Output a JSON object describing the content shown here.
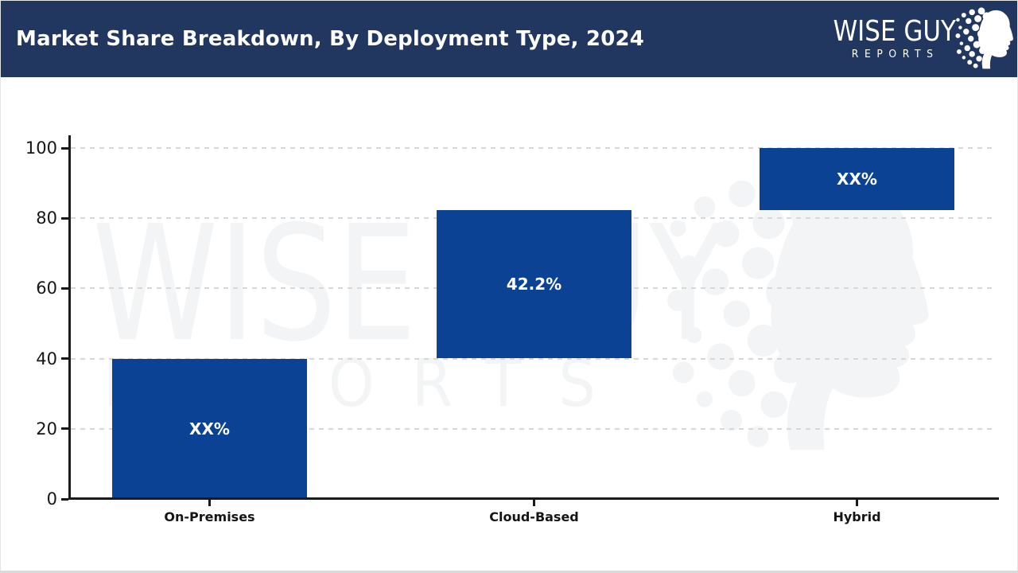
{
  "header": {
    "title": "Market Share Breakdown, By Deployment Type, 2024",
    "bg_color": "#213760",
    "logo": {
      "line1": "WISE GUY",
      "line2": "REPORTS"
    }
  },
  "watermark": {
    "line1": "WISE GUY",
    "line2": "REPORTS"
  },
  "chart_data": {
    "type": "bar",
    "variant": "waterfall",
    "title": "Market Share Breakdown, By Deployment Type, 2024",
    "categories": [
      "On-Premises",
      "Cloud-Based",
      "Hybrid"
    ],
    "segments": [
      {
        "category": "On-Premises",
        "label": "XX%",
        "start": 0,
        "end": 40
      },
      {
        "category": "Cloud-Based",
        "label": "42.2%",
        "start": 40,
        "end": 82.2
      },
      {
        "category": "Hybrid",
        "label": "XX%",
        "start": 82.2,
        "end": 100
      }
    ],
    "bar_labels": [
      "XX%",
      "42.2%",
      "XX%"
    ],
    "y_ticks": [
      0,
      20,
      40,
      60,
      80,
      100
    ],
    "ylim": [
      0,
      104
    ],
    "xlabel": "",
    "ylabel": "",
    "legend": "none",
    "grid": {
      "axis": "y",
      "style": "dashed",
      "color": "#d8d8d8"
    },
    "bar_color": "#0b4294",
    "bar_label_color": "#ffffff",
    "axis_color": "#1a1a1a"
  }
}
